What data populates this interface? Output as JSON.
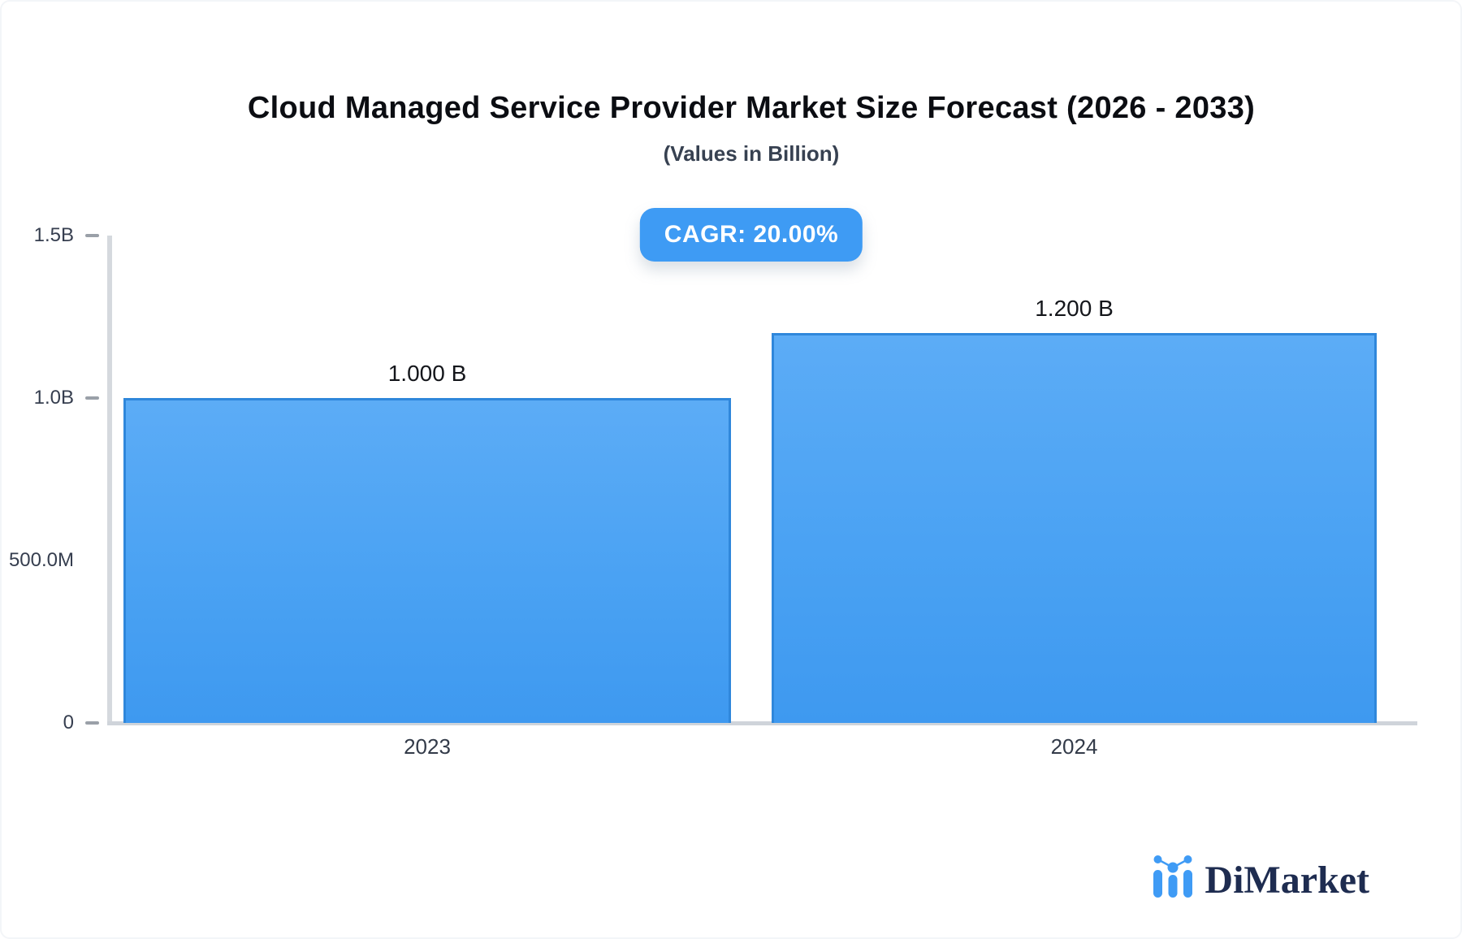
{
  "header": {
    "title": "Cloud Managed Service Provider Market Size Forecast (2026 - 2033)",
    "subtitle": "(Values in Billion)",
    "cagr_label": "CAGR: 20.00%"
  },
  "chart_data": {
    "type": "bar",
    "title": "Cloud Managed Service Provider Market Size Forecast (2026 - 2033)",
    "subtitle": "(Values in Billion)",
    "cagr": "20.00%",
    "categories": [
      "2023",
      "2024"
    ],
    "values": [
      1.0,
      1.2
    ],
    "value_labels": [
      "1.000 B",
      "1.200 B"
    ],
    "unit": "Billion",
    "ylim": [
      0,
      1.5
    ],
    "yticks": [
      {
        "label": "1.5B",
        "value": 1.5,
        "has_tick": true
      },
      {
        "label": "1.0B",
        "value": 1.0,
        "has_tick": true
      },
      {
        "label": "500.0M",
        "value": 0.5,
        "has_tick": false
      },
      {
        "label": "0",
        "value": 0,
        "has_tick": true
      }
    ],
    "grid": false,
    "legend": false,
    "bar_color_top": "#5CACF6",
    "bar_color_bottom": "#3E99F0",
    "bar_border_color": "#2F87DB"
  },
  "branding": {
    "logo_text": "DiMarket",
    "logo_icon": "bar-line-chart-icon",
    "logo_text_color": "#1E2C50",
    "logo_icon_color": "#3F9BF5"
  },
  "colors": {
    "badge_bg": "#3E9BF4",
    "badge_text": "#FFFFFF",
    "axis_line": "#D2D6DC",
    "tick": "#9AA0A8",
    "axis_label": "#363E4F",
    "title_text": "#0B0D12",
    "subtitle_text": "#374151"
  }
}
